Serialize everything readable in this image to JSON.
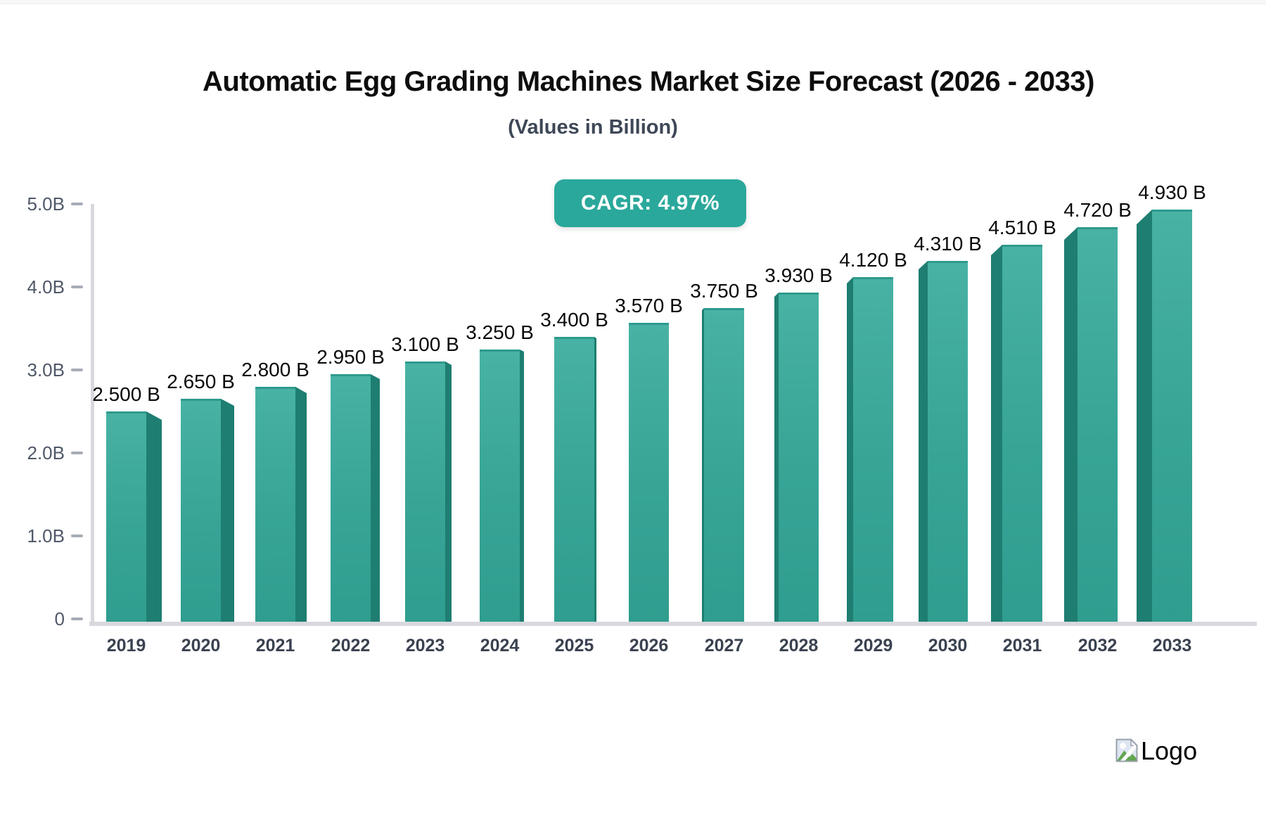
{
  "header": {
    "title": "Automatic Egg Grading Machines Market Size Forecast (2026 - 2033)",
    "subtitle": "(Values in Billion)"
  },
  "badge": {
    "label": "CAGR: 4.97%",
    "bg_color": "#2AA89B",
    "text_color": "#FFFFFF"
  },
  "chart_data": {
    "type": "bar",
    "style": "3d-perspective-extruded-bars",
    "title": "Automatic Egg Grading Machines Market Size Forecast (2026 - 2033)",
    "subtitle": "(Values in Billion)",
    "xlabel": "",
    "ylabel": "",
    "categories": [
      "2019",
      "2020",
      "2021",
      "2022",
      "2023",
      "2024",
      "2025",
      "2026",
      "2027",
      "2028",
      "2029",
      "2030",
      "2031",
      "2032",
      "2033"
    ],
    "values": [
      2.5,
      2.65,
      2.8,
      2.95,
      3.1,
      3.25,
      3.4,
      3.57,
      3.75,
      3.93,
      4.12,
      4.31,
      4.51,
      4.72,
      4.93
    ],
    "value_labels": [
      "2.500 B",
      "2.650 B",
      "2.800 B",
      "2.950 B",
      "3.100 B",
      "3.250 B",
      "3.400 B",
      "3.570 B",
      "3.750 B",
      "3.930 B",
      "4.120 B",
      "4.310 B",
      "4.510 B",
      "4.720 B",
      "4.930 B"
    ],
    "ytick_labels": [
      "5.0B",
      "4.0B",
      "3.0B",
      "2.0B",
      "1.0B",
      "0"
    ],
    "ytick_values": [
      5,
      4,
      3,
      2,
      1,
      0
    ],
    "ylim": [
      0,
      5
    ],
    "grid": false,
    "legend": "none",
    "colors": {
      "bar_front_top": "#48B2A4",
      "bar_front_mid": "#37A496",
      "bar_front_bottom": "#2F9D8F",
      "bar_top_edge": "#2D9A8C",
      "bar_side": "#1E7E71",
      "axis_line": "#D8D8DE",
      "tick_dash": "#A7ADB6",
      "value_label": "#0A0A0A",
      "x_label": "#3A4250",
      "y_label": "#4F5868"
    }
  },
  "footer": {
    "logo_alt": "Logo",
    "icon": "broken-image-icon"
  }
}
